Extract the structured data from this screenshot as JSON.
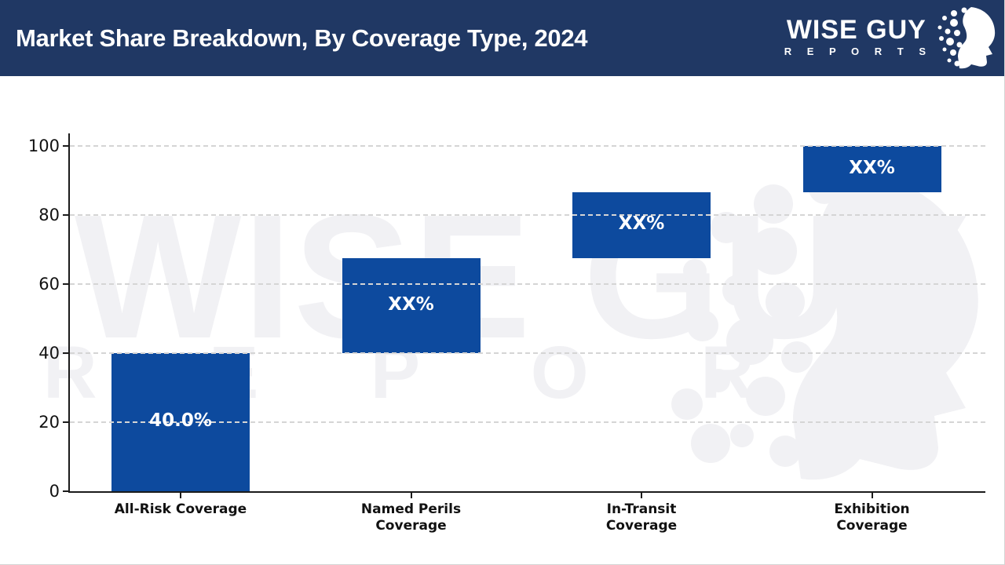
{
  "header": {
    "title": "Market Share Breakdown, By Coverage Type, 2024",
    "bg_color": "#203864",
    "logo": {
      "line1": "WISE GUY",
      "line2": "R E P O R T S"
    }
  },
  "watermark": {
    "line1": "WISE GUY",
    "line2": "R E P O R T S"
  },
  "chart_data": {
    "type": "bar",
    "subtype": "waterfall",
    "title": "Market Share Breakdown, By Coverage Type, 2024",
    "categories": [
      "All-Risk Coverage",
      "Named Perils\nCoverage",
      "In-Transit\nCoverage",
      "Exhibition\nCoverage"
    ],
    "segments": [
      {
        "category": "All-Risk Coverage",
        "start": 0,
        "end": 40,
        "value": 40.0,
        "label": "40.0%"
      },
      {
        "category": "Named Perils Coverage",
        "start": 40,
        "end": 67.5,
        "value": 27.5,
        "label": "XX%"
      },
      {
        "category": "In-Transit Coverage",
        "start": 67.5,
        "end": 86.5,
        "value": 19.0,
        "label": "XX%"
      },
      {
        "category": "Exhibition Coverage",
        "start": 86.5,
        "end": 100,
        "value": 13.5,
        "label": "XX%"
      }
    ],
    "y_ticks": [
      0,
      20,
      40,
      60,
      80,
      100
    ],
    "ylim": [
      0,
      100
    ],
    "xlabel": "",
    "ylabel": "",
    "grid": "horizontal-dashed",
    "grid_above_bars": true,
    "legend": "none",
    "bar_color": "#0d4a9e",
    "bar_label_color": "#ffffff",
    "axis_color": "#1b1b1b",
    "gridline_color": "#d5d5d5"
  }
}
